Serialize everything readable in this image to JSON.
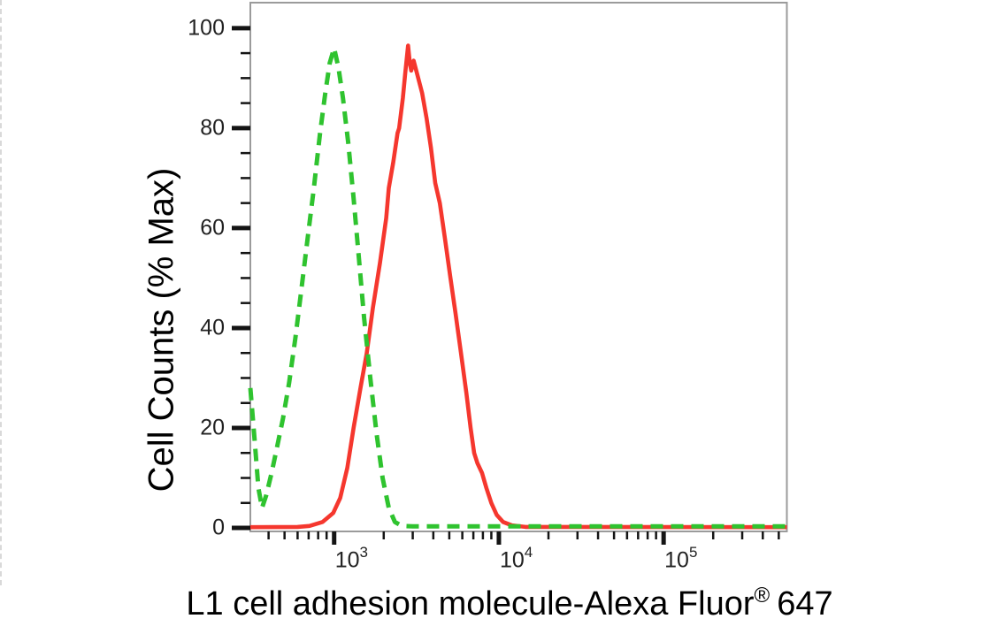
{
  "figure": {
    "background": "#ffffff",
    "y_axis_label": "Cell Counts (% Max)",
    "x_axis_label_main": "L1 cell adhesion molecule-Alexa Fluor",
    "x_axis_label_reg": "®",
    "x_axis_label_suffix": "647"
  },
  "chart_data": {
    "type": "line",
    "title": "",
    "xlabel": "L1 cell adhesion molecule-Alexa Fluor® 647",
    "ylabel": "Cell Counts (% Max)",
    "x_scale": "log",
    "x_range": [
      310,
      560000
    ],
    "y_range": [
      0,
      100
    ],
    "y_axis_draw_range": [
      -0.7,
      105.1
    ],
    "y_ticks": [
      0,
      20,
      40,
      60,
      80,
      100
    ],
    "y_minor_step": 5,
    "x_major_ticks": [
      1000,
      10000,
      100000
    ],
    "grid": false,
    "legend": "none",
    "frame_color": "#9b9b9b",
    "tick_color": "#141414",
    "series": [
      {
        "name": "green-dashed-control",
        "style": "dashed",
        "color": "#2fc32f",
        "points": [
          [
            310,
            28
          ],
          [
            330,
            17
          ],
          [
            347,
            8
          ],
          [
            365,
            4
          ],
          [
            387,
            6.5
          ],
          [
            417,
            11
          ],
          [
            449,
            16
          ],
          [
            490,
            22
          ],
          [
            533,
            29
          ],
          [
            582,
            38
          ],
          [
            634,
            48
          ],
          [
            691,
            58
          ],
          [
            753,
            68
          ],
          [
            821,
            79
          ],
          [
            884,
            87
          ],
          [
            940,
            93
          ],
          [
            1000,
            96
          ],
          [
            1064,
            92
          ],
          [
            1131,
            86
          ],
          [
            1219,
            77
          ],
          [
            1312,
            66
          ],
          [
            1413,
            54
          ],
          [
            1521,
            42
          ],
          [
            1657,
            30
          ],
          [
            1807,
            19
          ],
          [
            1969,
            10
          ],
          [
            2146,
            4
          ],
          [
            2339,
            1.2
          ],
          [
            2581,
            0.4
          ],
          [
            3000,
            0.3
          ],
          [
            560000,
            0.3
          ]
        ]
      },
      {
        "name": "red-solid-l1cam-alexa647",
        "style": "solid",
        "color": "#f5372e",
        "points": [
          [
            310,
            0.15
          ],
          [
            600,
            0.2
          ],
          [
            708,
            0.4
          ],
          [
            851,
            1.2
          ],
          [
            988,
            3
          ],
          [
            1089,
            6
          ],
          [
            1202,
            12
          ],
          [
            1312,
            20
          ],
          [
            1445,
            28
          ],
          [
            1578,
            35
          ],
          [
            1718,
            44
          ],
          [
            1896,
            53
          ],
          [
            2070,
            62
          ],
          [
            2146,
            68
          ],
          [
            2280,
            73
          ],
          [
            2427,
            79
          ],
          [
            2480,
            80
          ],
          [
            2612,
            86
          ],
          [
            2700,
            91
          ],
          [
            2810,
            96.5
          ],
          [
            2880,
            93
          ],
          [
            2940,
            91.5
          ],
          [
            3040,
            93.5
          ],
          [
            3180,
            91
          ],
          [
            3420,
            87
          ],
          [
            3640,
            82
          ],
          [
            3870,
            76
          ],
          [
            4110,
            69
          ],
          [
            4380,
            65
          ],
          [
            4700,
            58
          ],
          [
            5080,
            50
          ],
          [
            5450,
            43
          ],
          [
            5890,
            35
          ],
          [
            6350,
            27
          ],
          [
            6740,
            20
          ],
          [
            7080,
            15
          ],
          [
            7400,
            13
          ],
          [
            7900,
            11
          ],
          [
            8400,
            8
          ],
          [
            9000,
            5
          ],
          [
            9700,
            2.6
          ],
          [
            10600,
            1.2
          ],
          [
            12000,
            0.5
          ],
          [
            14500,
            0.2
          ],
          [
            560000,
            0.15
          ]
        ]
      }
    ]
  }
}
